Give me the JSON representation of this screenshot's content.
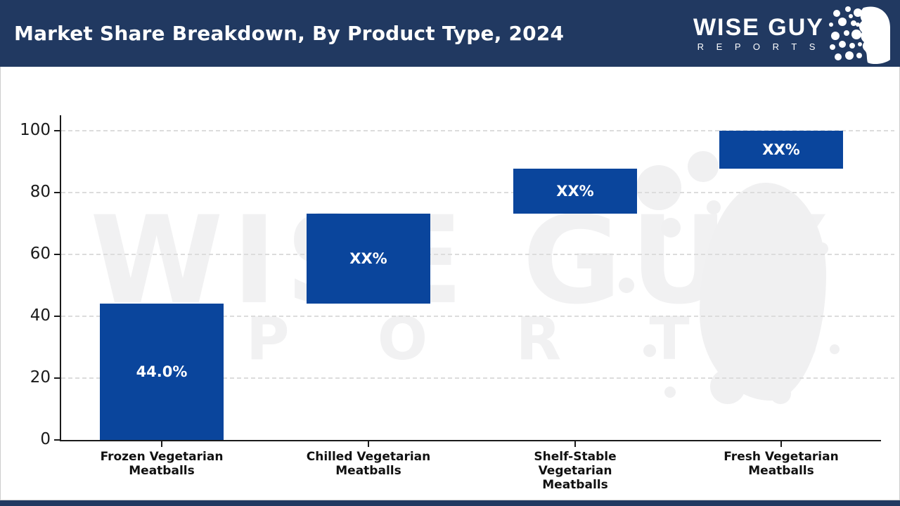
{
  "header": {
    "title": "Market Share Breakdown, By Product Type, 2024",
    "brand": {
      "name": "WISE GUY",
      "subtitle": "R E P O R T S"
    }
  },
  "watermark": {
    "text_main": "WISE GUY",
    "text_sub": "P O R T S"
  },
  "chart_data": {
    "type": "bar",
    "variant": "waterfall",
    "title": "Market Share Breakdown, By Product Type, 2024",
    "categories": [
      [
        "Frozen Vegetarian",
        "Meatballs"
      ],
      [
        "Chilled Vegetarian",
        "Meatballs"
      ],
      [
        "Shelf-Stable",
        "Vegetarian",
        "Meatballs"
      ],
      [
        "Fresh Vegetarian",
        "Meatballs"
      ]
    ],
    "segments": [
      {
        "name": "Frozen Vegetarian Meatballs",
        "start": 0,
        "end": 44.0,
        "label": "44.0%"
      },
      {
        "name": "Chilled Vegetarian Meatballs",
        "start": 44.0,
        "end": 73.2,
        "label": "XX%"
      },
      {
        "name": "Shelf-Stable Vegetarian Meatballs",
        "start": 73.2,
        "end": 87.7,
        "label": "XX%"
      },
      {
        "name": "Fresh Vegetarian Meatballs",
        "start": 87.7,
        "end": 100.0,
        "label": "XX%"
      }
    ],
    "xlabel": "",
    "ylabel": "",
    "ylim": [
      0,
      105
    ],
    "yticks": [
      0,
      20,
      40,
      60,
      80,
      100
    ],
    "grid": "horizontal-dashed",
    "legend": "none",
    "colors": {
      "bar": "#0a459c",
      "bar_label": "#ffffff",
      "grid": "#dcdcdc",
      "axis": "#1a1a1a",
      "tick_label": "#1a1a1a",
      "header_bg": "#213961",
      "watermark": "#f1f1f2"
    }
  }
}
